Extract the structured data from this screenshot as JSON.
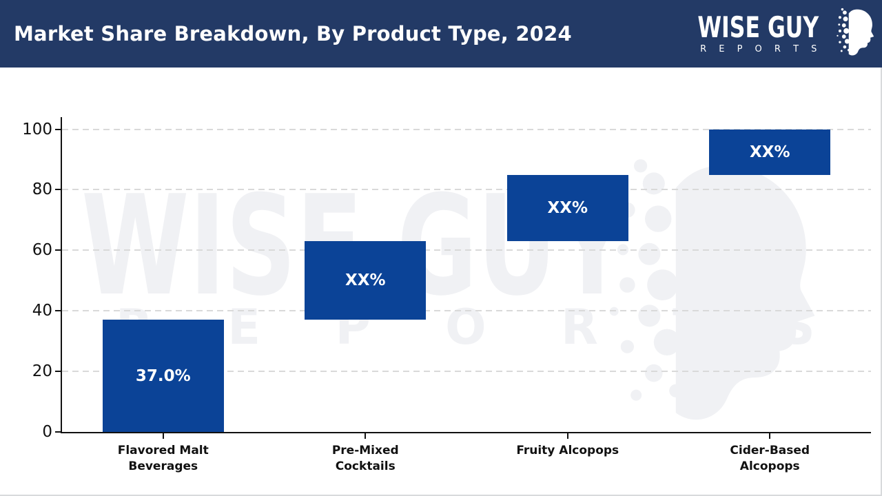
{
  "header": {
    "title": "Market Share Breakdown, By Product Type, 2024",
    "logo_line1": "WISE GUY",
    "logo_line2": "R E P O R T S"
  },
  "watermark": {
    "line1": "WISE GUY",
    "line2": "R E P O R T S"
  },
  "chart_data": {
    "type": "bar",
    "subtype": "floating-segment-waterfall",
    "title": "Market Share Breakdown, By Product Type, 2024",
    "xlabel": "",
    "ylabel": "",
    "categories": [
      "Flavored Malt\nBeverages",
      "Pre-Mixed\nCocktails",
      "Fruity Alcopops",
      "Cider-Based\nAlcopops"
    ],
    "bars": [
      {
        "category": "Flavored Malt\nBeverages",
        "start": 0,
        "end": 37,
        "value": 37,
        "label": "37.0%"
      },
      {
        "category": "Pre-Mixed\nCocktails",
        "start": 37,
        "end": 63,
        "value": 26,
        "label": "XX%"
      },
      {
        "category": "Fruity Alcopops",
        "start": 63,
        "end": 85,
        "value": 22,
        "label": "XX%"
      },
      {
        "category": "Cider-Based\nAlcopops",
        "start": 85,
        "end": 100,
        "value": 15,
        "label": "XX%"
      }
    ],
    "y_ticks": [
      0,
      20,
      40,
      60,
      80,
      100
    ],
    "ylim": [
      0,
      104
    ],
    "grid": "horizontal-dashed",
    "legend": "none"
  },
  "colors": {
    "header_bg": "#233a66",
    "bar": "#0b4397",
    "bar_label": "#ffffff",
    "watermark": "#f0f1f4",
    "grid": "#d9d9d9",
    "axis": "#111111"
  }
}
